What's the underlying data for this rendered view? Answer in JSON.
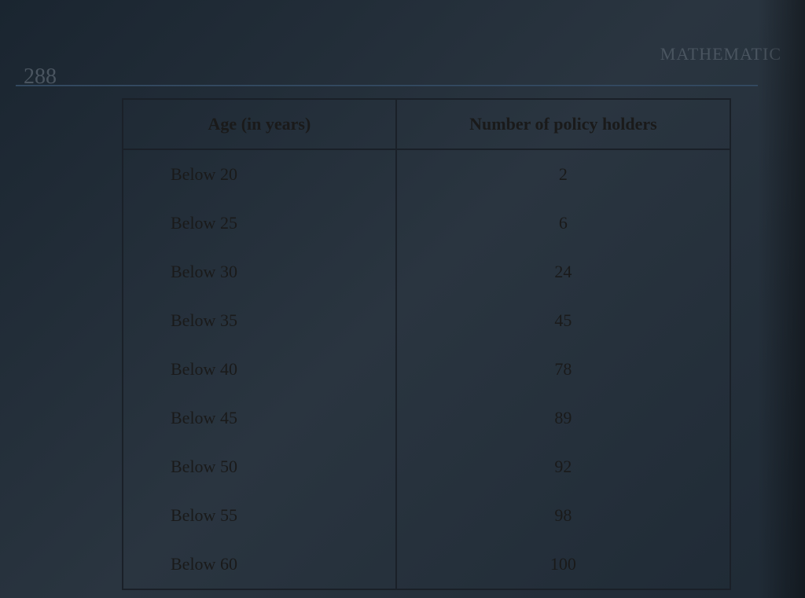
{
  "page": {
    "number": "288",
    "header_right": "MATHEMATIC"
  },
  "table": {
    "columns": [
      "Age (in years)",
      "Number of policy holders"
    ],
    "rows": [
      [
        "Below 20",
        "2"
      ],
      [
        "Below 25",
        "6"
      ],
      [
        "Below 30",
        "24"
      ],
      [
        "Below 35",
        "45"
      ],
      [
        "Below 40",
        "78"
      ],
      [
        "Below 45",
        "89"
      ],
      [
        "Below 50",
        "92"
      ],
      [
        "Below 55",
        "98"
      ],
      [
        "Below 60",
        "100"
      ]
    ]
  },
  "colors": {
    "background_dark": "#1a2530",
    "background_mid": "#2a3540",
    "text_faded": "#4a5560",
    "text_dark": "#1a1a1a",
    "border": "#1a2028",
    "divider": "#3a5570"
  }
}
